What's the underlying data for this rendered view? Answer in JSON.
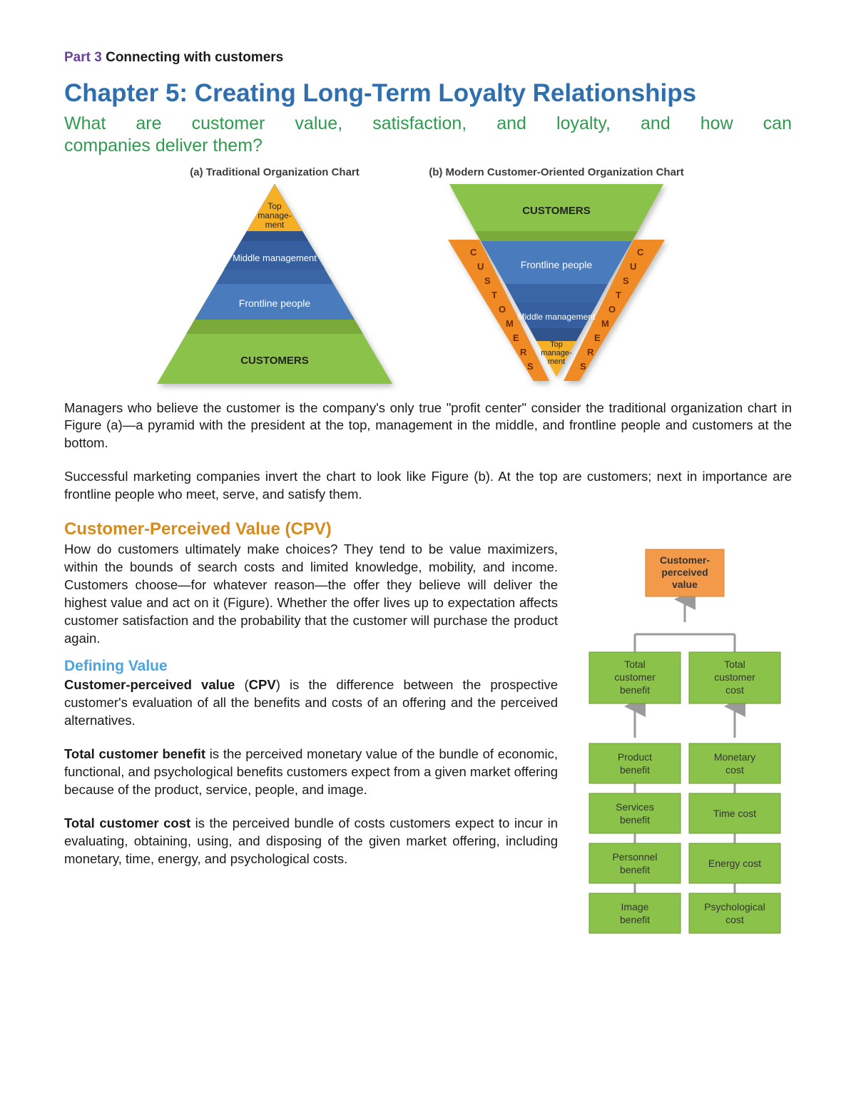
{
  "colors": {
    "part_label": "#6b3fa0",
    "chapter_title": "#2f6fae",
    "subtitle": "#2e9b4f",
    "h2": "#d78b1c",
    "h3": "#4aa4e0",
    "text": "#1a1a1a",
    "piramid_green": "#8bc34a",
    "piramid_green_dark": "#7aab3a",
    "piramid_blue": "#4a7bbd",
    "piramid_blue_dark": "#3a66a6",
    "piramid_blue_mid": "#355f9e",
    "piramid_yellow": "#f6b025",
    "piramid_orange": "#f08a24",
    "cpv_top": "#f2994a",
    "cpv_box": "#8bc34a",
    "cpv_arrow": "#9a9a9a"
  },
  "header": {
    "part_label": "Part 3",
    "part_title": "Connecting with customers",
    "chapter_title": "Chapter 5: Creating Long-Term Loyalty Relationships",
    "subtitle_line1": "What are customer value, satisfaction, and loyalty, and how can",
    "subtitle_line2": "companies deliver them?"
  },
  "figure1": {
    "caption_a": "(a) Traditional Organization Chart",
    "caption_b": "(b) Modern Customer-Oriented Organization Chart",
    "labels": {
      "top_mgmt_1": "Top",
      "top_mgmt_2": "manage-",
      "top_mgmt_3": "ment",
      "middle": "Middle management",
      "frontline": "Frontline people",
      "customers": "CUSTOMERS",
      "side_customers": "CUSTOMERS"
    }
  },
  "para1": "Managers who believe the customer is the company's only true \"profit center\" consider the traditional organization chart in Figure (a)—a pyramid with the president at the top, management in the middle, and frontline people and customers at the bottom.",
  "para2": "Successful marketing companies invert the chart to look like Figure (b). At the top are customers; next in importance are frontline people who meet, serve, and satisfy them.",
  "cpv": {
    "h2": "Customer-Perceived Value (CPV)",
    "p1": "How do customers ultimately make choices? They tend to be value maximizers, within the bounds of search costs and limited knowledge, mobility, and income. Customers choose—for whatever reason—the offer they believe will deliver the highest value and act on it (Figure). Whether the offer lives up to expectation affects customer satisfaction and the probability that the customer will purchase the product again.",
    "h3": "Defining Value",
    "p2a_lead": "Customer-perceived value",
    "p2a_mid": " (",
    "p2a_bold2": "CPV",
    "p2a_rest": ") is the difference between the prospective customer's evaluation of all the benefits and costs of an offering and the perceived alternatives.",
    "p3_lead": "Total customer benefit",
    "p3_rest": " is the perceived monetary value of the bundle of economic, functional, and psychological benefits customers expect from a given market offering because of the product, service, people, and image.",
    "p4_lead": "Total customer cost",
    "p4_rest": " is the perceived bundle of costs customers expect to incur in evaluating, obtaining, using, and disposing of the given market offering, including monetary, time, energy, and psychological costs."
  },
  "cpv_diagram": {
    "top_1": "Customer-",
    "top_2": "perceived",
    "top_3": "value",
    "left_top_1": "Total",
    "left_top_2": "customer",
    "left_top_3": "benefit",
    "right_top_1": "Total",
    "right_top_2": "customer",
    "right_top_3": "cost",
    "left": [
      [
        "Product",
        "benefit"
      ],
      [
        "Services",
        "benefit"
      ],
      [
        "Personnel",
        "benefit"
      ],
      [
        "Image",
        "benefit"
      ]
    ],
    "right": [
      [
        "Monetary",
        "cost"
      ],
      [
        "Time cost"
      ],
      [
        "Energy cost"
      ],
      [
        "Psychological",
        "cost"
      ]
    ]
  }
}
